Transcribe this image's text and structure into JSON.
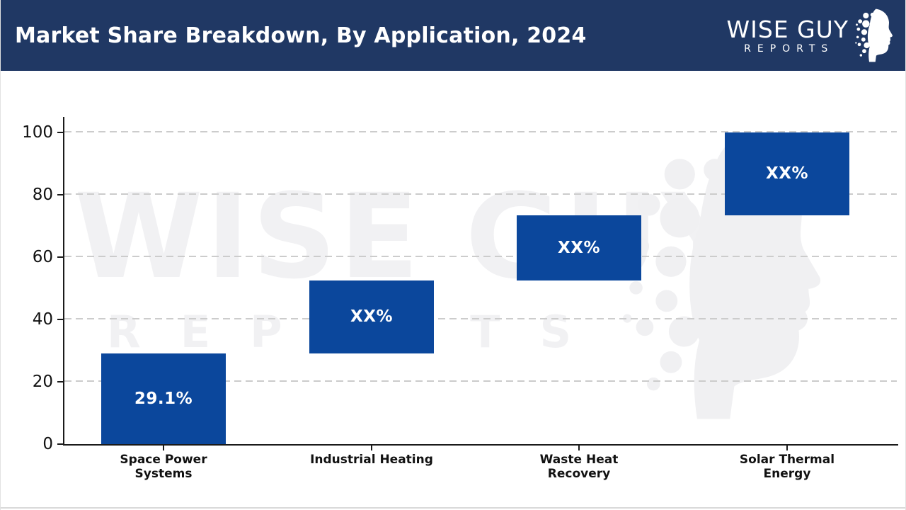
{
  "header": {
    "title": "Market Share Breakdown, By Application, 2024",
    "brand": {
      "line1": "WISE GUY",
      "line2": "REPORTS"
    }
  },
  "watermark": {
    "line1": "WISE GUY",
    "line2": "REPORTS"
  },
  "chart_data": {
    "type": "bar",
    "subtype": "waterfall",
    "title": "Market Share Breakdown, By Application, 2024",
    "categories": [
      "Space Power\nSystems",
      "Industrial Heating",
      "Waste Heat\nRecovery",
      "Solar Thermal\nEnergy"
    ],
    "bars": [
      {
        "category": "Space Power\nSystems",
        "start": 0,
        "end": 29.1,
        "label": "29.1%"
      },
      {
        "category": "Industrial Heating",
        "start": 29.1,
        "end": 52.5,
        "label": "XX%"
      },
      {
        "category": "Waste Heat\nRecovery",
        "start": 52.5,
        "end": 73.5,
        "label": "XX%"
      },
      {
        "category": "Solar Thermal\nEnergy",
        "start": 73.5,
        "end": 100,
        "label": "XX%"
      }
    ],
    "xlabel": "",
    "ylabel": "",
    "ylim": [
      0,
      100
    ],
    "yticks": [
      0,
      20,
      40,
      60,
      80,
      100
    ],
    "grid": "horizontal-dashed",
    "legend": "none",
    "bar_color": "#0b479c",
    "bar_label_color": "#ffffff",
    "header_color": "#203864",
    "gridline_color": "#cccccc",
    "watermark_color": "#f1f1f3"
  }
}
